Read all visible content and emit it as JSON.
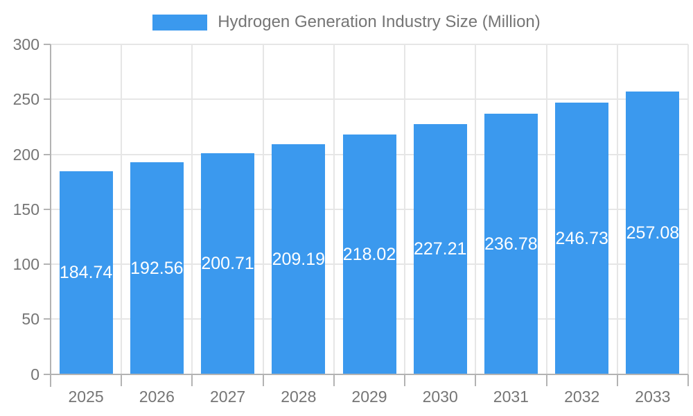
{
  "chart_data": {
    "type": "bar",
    "title": "",
    "legend": {
      "label": "Hydrogen Generation Industry Size (Million)",
      "position": "top-center"
    },
    "categories": [
      "2025",
      "2026",
      "2027",
      "2028",
      "2029",
      "2030",
      "2031",
      "2032",
      "2033"
    ],
    "series": [
      {
        "name": "Hydrogen Generation Industry Size (Million)",
        "values": [
          184.74,
          192.56,
          200.71,
          209.19,
          218.02,
          227.21,
          236.78,
          246.73,
          257.08
        ]
      }
    ],
    "xlabel": "",
    "ylabel": "",
    "ylim": [
      0,
      300
    ],
    "yticks": [
      0,
      50,
      100,
      150,
      200,
      250,
      300
    ],
    "grid": true,
    "bar_labels_shown": true,
    "colors": {
      "bar": "#3B99EE",
      "axis_line": "#B3B3B3",
      "gridline": "#E6E6E6",
      "tick_text": "#757575",
      "bar_label_text": "#FFFFFF",
      "background": "#FFFFFF"
    }
  }
}
